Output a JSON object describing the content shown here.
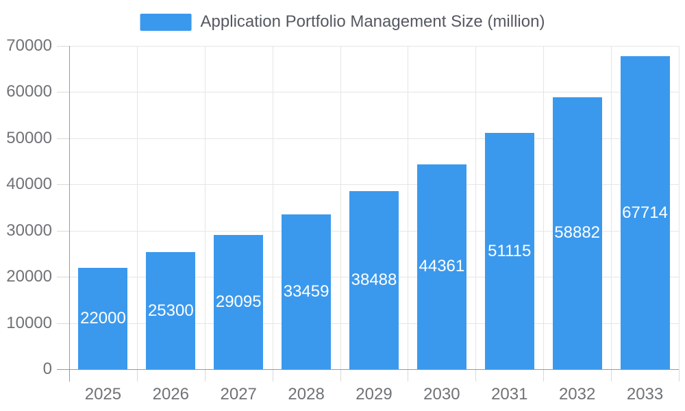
{
  "chart_data": {
    "type": "bar",
    "title": "Application Portfolio Management Size (million)",
    "legend": {
      "label": "Application Portfolio Management Size (million)",
      "position": "top-center"
    },
    "categories": [
      "2025",
      "2026",
      "2027",
      "2028",
      "2029",
      "2030",
      "2031",
      "2032",
      "2033"
    ],
    "series": [
      {
        "name": "Application Portfolio Management Size (million)",
        "values": [
          22000,
          25300,
          29095,
          33459,
          38488,
          44361,
          51115,
          58882,
          67714
        ]
      }
    ],
    "xlabel": "",
    "ylabel": "",
    "ylim": [
      0,
      70000
    ],
    "y_ticks": [
      0,
      10000,
      20000,
      30000,
      40000,
      50000,
      60000,
      70000
    ],
    "grid": "on",
    "value_labels": "inside-center-white",
    "colors": {
      "bar": "#3b99ed",
      "value_label": "#ffffff",
      "grid_line": "#e5e5e5",
      "tick_mark": "#d9d9d9",
      "axis_line": "#999999",
      "axis_label": "#6f7276",
      "legend_text": "#54585f",
      "background": "#ffffff"
    }
  }
}
